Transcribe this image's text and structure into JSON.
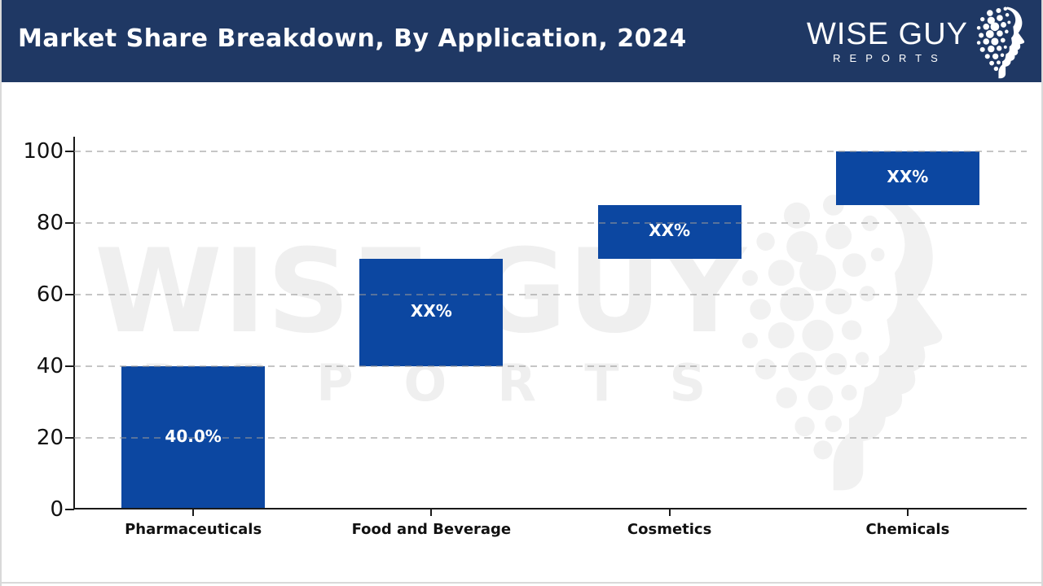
{
  "header": {
    "title": "Market Share Breakdown, By Application, 2024",
    "logo": {
      "line1": "WISE GUY",
      "line2": "REPORTS"
    }
  },
  "watermark": {
    "line1": "WISE GUY",
    "line2": "REPORTS"
  },
  "colors": {
    "header_bg": "#1F3864",
    "bar": "#0C47A1",
    "grid": "#999999",
    "axis": "#1A1A1A",
    "bar_label_text": "#FFFFFF",
    "watermark": "#EFEFEF"
  },
  "chart_data": {
    "type": "bar",
    "subtype": "waterfall",
    "title": "Market Share Breakdown, By Application, 2024",
    "xlabel": "",
    "ylabel": "",
    "ylim": [
      0,
      100
    ],
    "yticks": [
      0,
      20,
      40,
      60,
      80,
      100
    ],
    "grid": "horizontal-dashed",
    "legend": null,
    "categories": [
      "Pharmaceuticals",
      "Food and Beverage",
      "Cosmetics",
      "Chemicals"
    ],
    "segments": [
      {
        "category": "Pharmaceuticals",
        "start": 0,
        "end": 40,
        "value": 40,
        "label": "40.0%"
      },
      {
        "category": "Food and Beverage",
        "start": 40,
        "end": 70,
        "value": 30,
        "label": "XX%"
      },
      {
        "category": "Cosmetics",
        "start": 70,
        "end": 85,
        "value": 15,
        "label": "XX%"
      },
      {
        "category": "Chemicals",
        "start": 85,
        "end": 100,
        "value": 15,
        "label": "XX%"
      }
    ]
  }
}
